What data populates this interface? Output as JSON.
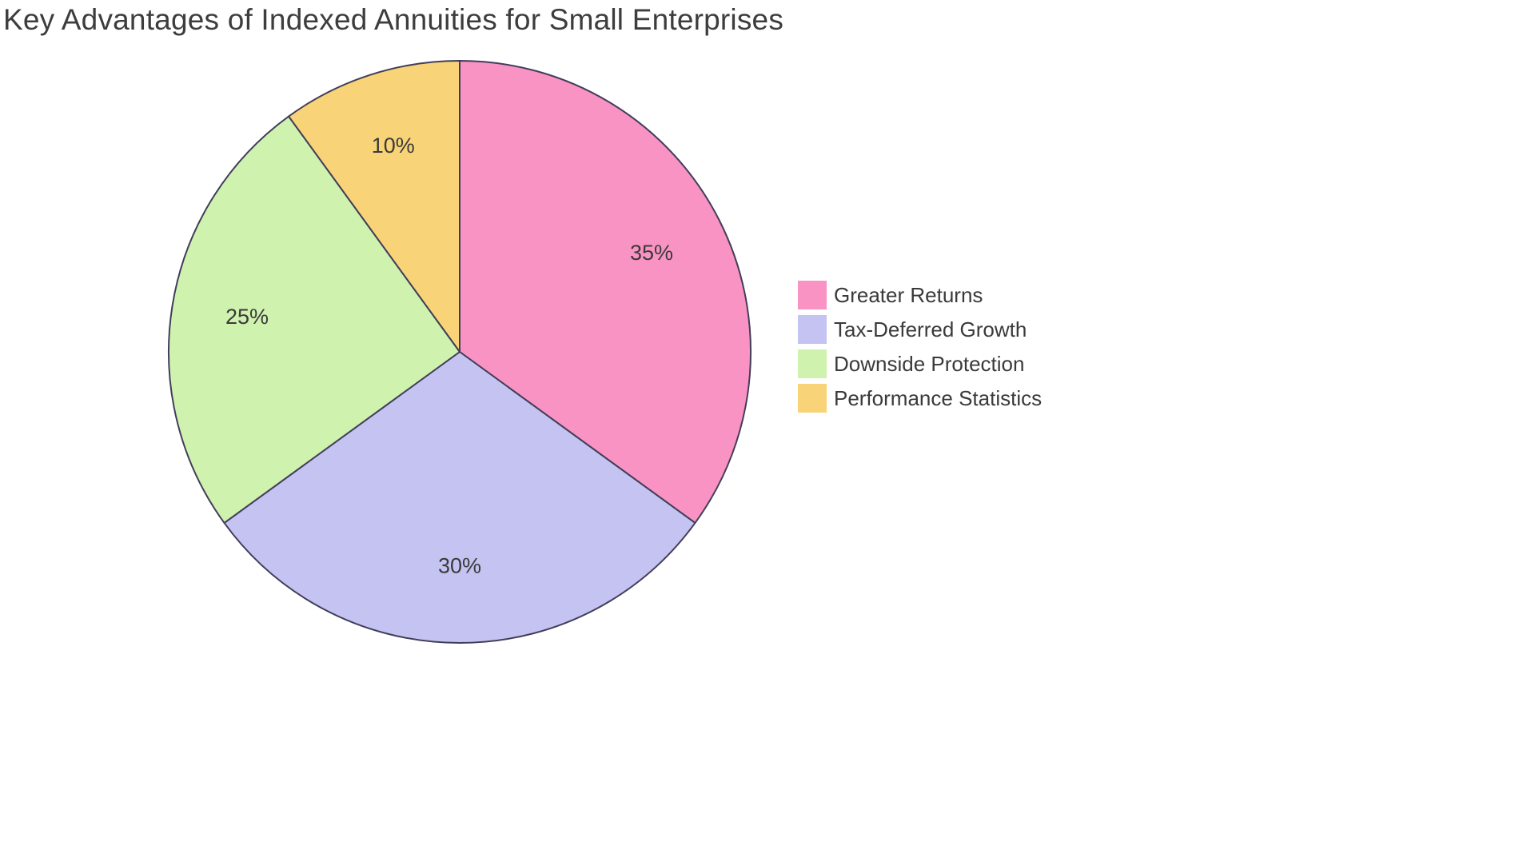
{
  "chart_data": {
    "type": "pie",
    "title": "Key Advantages of Indexed Annuities for Small Enterprises",
    "slices": [
      {
        "label": "Greater Returns",
        "value": 35,
        "percent_label": "35%",
        "color": "#F993C3"
      },
      {
        "label": "Tax-Deferred Growth",
        "value": 30,
        "percent_label": "30%",
        "color": "#C4C3F1"
      },
      {
        "label": "Downside Protection",
        "value": 25,
        "percent_label": "25%",
        "color": "#D0F2AF"
      },
      {
        "label": "Performance Statistics",
        "value": 10,
        "percent_label": "10%",
        "color": "#F8D377"
      }
    ],
    "start_angle_deg": 0,
    "direction": "clockwise",
    "legend_position": "right",
    "stroke_color": "#413E5A",
    "label_color": "#3a3a3a",
    "background_color": "#ffffff"
  }
}
